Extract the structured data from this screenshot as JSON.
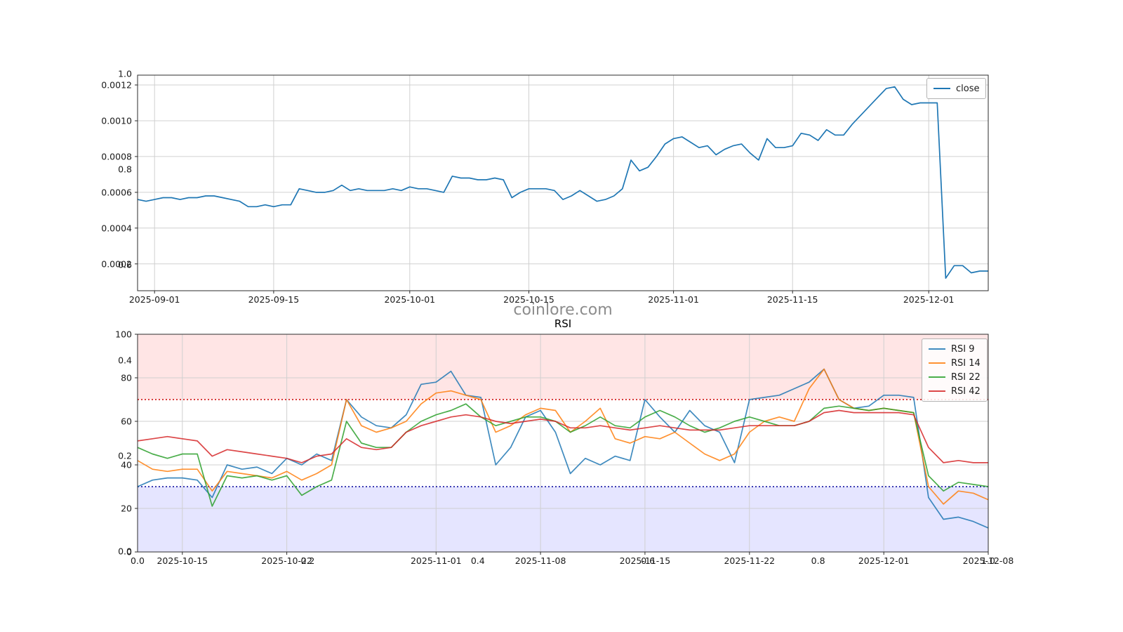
{
  "watermark": "coinlore.com",
  "overlay_axis": {
    "x_ticks": [
      "0.0",
      "0.2",
      "0.4",
      "0.6",
      "0.8",
      "1.0"
    ],
    "y_ticks": [
      "1.0",
      "0.8",
      "0.6",
      "0.4",
      "0.2",
      "0.0"
    ]
  },
  "chart_data": [
    {
      "type": "line",
      "title": "",
      "legend_position": "upper right",
      "x_domain": [
        0,
        100
      ],
      "x_start_label": "2025-08-30",
      "x_ticks": [
        {
          "day": 2,
          "label": "2025-09-01"
        },
        {
          "day": 16,
          "label": "2025-09-15"
        },
        {
          "day": 32,
          "label": "2025-10-01"
        },
        {
          "day": 46,
          "label": "2025-10-15"
        },
        {
          "day": 63,
          "label": "2025-11-01"
        },
        {
          "day": 77,
          "label": "2025-11-15"
        },
        {
          "day": 93,
          "label": "2025-12-01"
        }
      ],
      "ylim": [
        5e-05,
        0.001255
      ],
      "y_ticks": [
        {
          "value": 0.0002,
          "label": "0.0002"
        },
        {
          "value": 0.0004,
          "label": "0.0004"
        },
        {
          "value": 0.0006,
          "label": "0.0006"
        },
        {
          "value": 0.0008,
          "label": "0.0008"
        },
        {
          "value": 0.001,
          "label": "0.0010"
        },
        {
          "value": 0.0012,
          "label": "0.0012"
        }
      ],
      "grid": true,
      "series": [
        {
          "name": "close",
          "color": "#1f77b4",
          "opacity": 1,
          "values": [
            0.00056,
            0.00055,
            0.00056,
            0.00057,
            0.00057,
            0.00056,
            0.00057,
            0.00057,
            0.00058,
            0.00058,
            0.00057,
            0.00056,
            0.00055,
            0.00052,
            0.00052,
            0.00053,
            0.00052,
            0.00053,
            0.00053,
            0.00062,
            0.00061,
            0.0006,
            0.0006,
            0.00061,
            0.00064,
            0.00061,
            0.00062,
            0.00061,
            0.00061,
            0.00061,
            0.00062,
            0.00061,
            0.00063,
            0.00062,
            0.00062,
            0.00061,
            0.0006,
            0.00069,
            0.00068,
            0.00068,
            0.00067,
            0.00067,
            0.00068,
            0.00067,
            0.00057,
            0.0006,
            0.00062,
            0.00062,
            0.00062,
            0.00061,
            0.00056,
            0.00058,
            0.00061,
            0.00058,
            0.00055,
            0.00056,
            0.00058,
            0.00062,
            0.00078,
            0.00072,
            0.00074,
            0.0008,
            0.00087,
            0.0009,
            0.00091,
            0.00088,
            0.00085,
            0.00086,
            0.00081,
            0.00084,
            0.00086,
            0.00087,
            0.00082,
            0.00078,
            0.0009,
            0.00085,
            0.00085,
            0.00086,
            0.00093,
            0.00092,
            0.00089,
            0.00095,
            0.00092,
            0.00092,
            0.00098,
            0.00103,
            0.00108,
            0.00113,
            0.00118,
            0.00119,
            0.00112,
            0.00109,
            0.0011,
            0.0011,
            0.0011,
            0.00012,
            0.00019,
            0.00019,
            0.00015,
            0.00016,
            0.00016
          ]
        }
      ]
    },
    {
      "type": "line",
      "title": "RSI",
      "legend_position": "upper right",
      "x_domain": [
        0,
        57
      ],
      "x_start_label": "2025-10-12",
      "x_ticks": [
        {
          "day": 3,
          "label": "2025-10-15"
        },
        {
          "day": 10,
          "label": "2025-10-22"
        },
        {
          "day": 20,
          "label": "2025-11-01"
        },
        {
          "day": 27,
          "label": "2025-11-08"
        },
        {
          "day": 34,
          "label": "2025-11-15"
        },
        {
          "day": 41,
          "label": "2025-11-22"
        },
        {
          "day": 50,
          "label": "2025-12-01"
        },
        {
          "day": 57,
          "label": "2025-12-08"
        }
      ],
      "ylim": [
        0,
        100
      ],
      "y_ticks": [
        {
          "value": 0,
          "label": "0"
        },
        {
          "value": 20,
          "label": "20"
        },
        {
          "value": 40,
          "label": "40"
        },
        {
          "value": 60,
          "label": "60"
        },
        {
          "value": 80,
          "label": "80"
        },
        {
          "value": 100,
          "label": "100"
        }
      ],
      "grid": true,
      "regions": [
        {
          "name": "overbought-region",
          "range": [
            70,
            100
          ],
          "color": "rgba(255,0,0,0.10)"
        },
        {
          "name": "oversold-region",
          "range": [
            0,
            30
          ],
          "color": "rgba(0,0,255,0.10)"
        }
      ],
      "threshold_lines": [
        {
          "name": "overbought-line",
          "value": 70,
          "color": "#cc0000"
        },
        {
          "name": "oversold-line",
          "value": 30,
          "color": "#000099"
        }
      ],
      "series": [
        {
          "name": "RSI 9",
          "color": "#1f77b4",
          "opacity": 0.85,
          "values": [
            30,
            33,
            34,
            34,
            33,
            25,
            40,
            38,
            39,
            36,
            43,
            40,
            45,
            42,
            70,
            62,
            58,
            57,
            63,
            77,
            78,
            83,
            72,
            71,
            40,
            48,
            62,
            65,
            55,
            36,
            43,
            40,
            44,
            42,
            70,
            62,
            55,
            65,
            58,
            55,
            41,
            70,
            71,
            72,
            75,
            78,
            84,
            70,
            66,
            67,
            72,
            72,
            71,
            25,
            15,
            16,
            14,
            11
          ]
        },
        {
          "name": "RSI 14",
          "color": "#ff7f0e",
          "opacity": 0.85,
          "values": [
            42,
            38,
            37,
            38,
            38,
            28,
            37,
            36,
            35,
            34,
            37,
            33,
            36,
            40,
            70,
            58,
            55,
            57,
            60,
            68,
            73,
            74,
            72,
            70,
            55,
            58,
            63,
            66,
            65,
            55,
            60,
            66,
            52,
            50,
            53,
            52,
            55,
            50,
            45,
            42,
            45,
            55,
            60,
            62,
            60,
            75,
            84,
            70,
            66,
            65,
            66,
            65,
            64,
            30,
            22,
            28,
            27,
            24
          ]
        },
        {
          "name": "RSI 22",
          "color": "#2ca02c",
          "opacity": 0.85,
          "values": [
            48,
            45,
            43,
            45,
            45,
            21,
            35,
            34,
            35,
            33,
            35,
            26,
            30,
            33,
            60,
            50,
            48,
            48,
            55,
            60,
            63,
            65,
            68,
            62,
            58,
            60,
            62,
            62,
            60,
            55,
            58,
            62,
            58,
            57,
            62,
            65,
            62,
            58,
            55,
            57,
            60,
            62,
            60,
            58,
            58,
            60,
            66,
            67,
            66,
            65,
            66,
            65,
            64,
            35,
            28,
            32,
            31,
            30
          ]
        },
        {
          "name": "RSI 42",
          "color": "#d62728",
          "opacity": 0.85,
          "values": [
            51,
            52,
            53,
            52,
            51,
            44,
            47,
            46,
            45,
            44,
            43,
            41,
            44,
            45,
            52,
            48,
            47,
            48,
            55,
            58,
            60,
            62,
            63,
            62,
            60,
            59,
            60,
            61,
            60,
            57,
            57,
            58,
            57,
            56,
            57,
            58,
            57,
            56,
            56,
            56,
            57,
            58,
            58,
            58,
            58,
            60,
            64,
            65,
            64,
            64,
            64,
            64,
            63,
            48,
            41,
            42,
            41,
            41
          ]
        }
      ]
    }
  ]
}
